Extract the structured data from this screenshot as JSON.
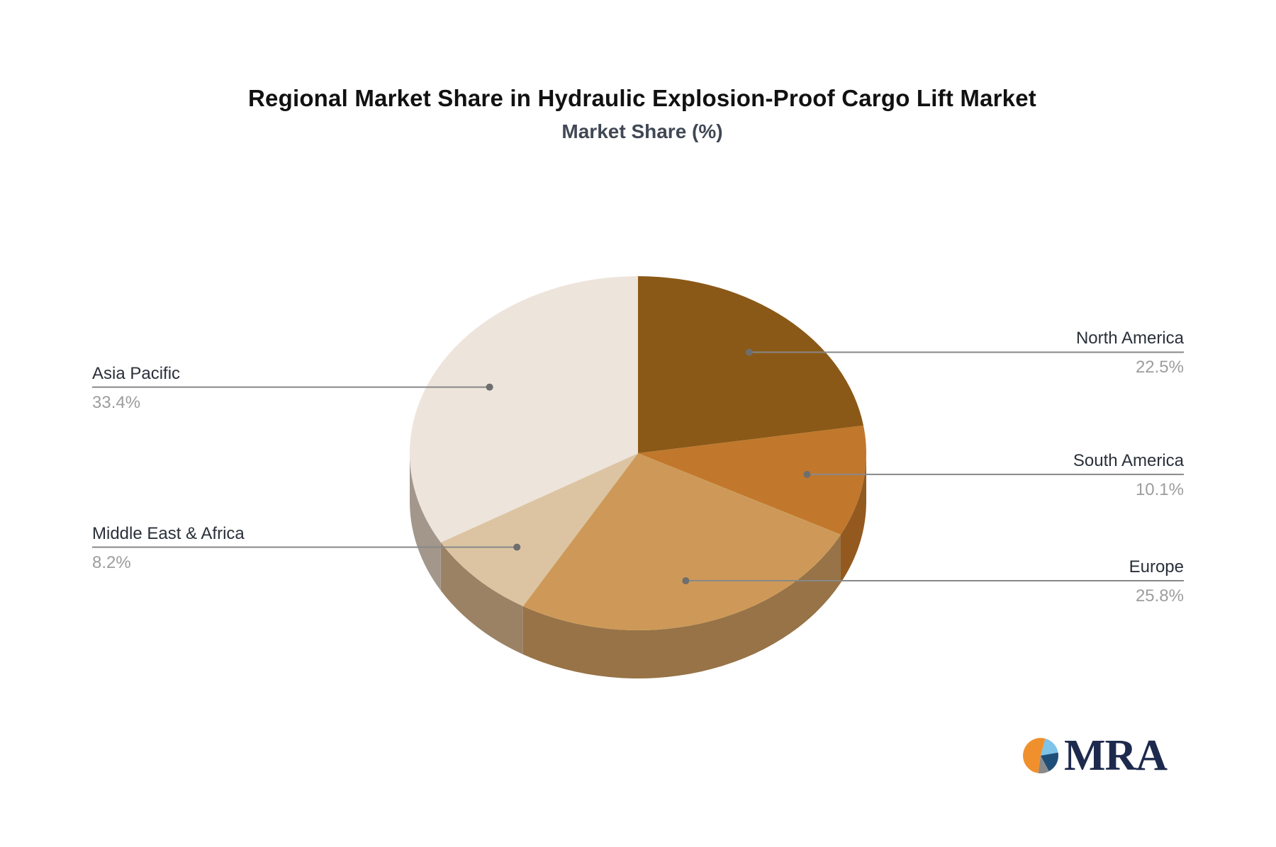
{
  "title": "Regional Market Share in Hydraulic Explosion-Proof Cargo Lift Market",
  "subtitle": "Market Share (%)",
  "chart_data": {
    "type": "pie",
    "style": "3d",
    "title": "Regional Market Share in Hydraulic Explosion-Proof Cargo Lift Market",
    "subtitle": "Market Share (%)",
    "unit": "%",
    "start_angle_deg": 0,
    "direction": "clockwise",
    "legend_position": "callout-lines",
    "series": [
      {
        "name": "North America",
        "value": 22.5,
        "label": "22.5%",
        "color": "#8B5917",
        "side_color": "#6F4612",
        "side": "right"
      },
      {
        "name": "South America",
        "value": 10.1,
        "label": "10.1%",
        "color": "#C1782C",
        "side_color": "#93591F",
        "side": "right"
      },
      {
        "name": "Europe",
        "value": 25.8,
        "label": "25.8%",
        "color": "#CE9958",
        "side_color": "#977347",
        "side": "right"
      },
      {
        "name": "Middle East & Africa",
        "value": 8.2,
        "label": "8.2%",
        "color": "#DCC4A2",
        "side_color": "#9B8265",
        "side": "left"
      },
      {
        "name": "Asia Pacific",
        "value": 33.4,
        "label": "33.4%",
        "color": "#EDE4DB",
        "side_color": "#A3978C",
        "side": "left"
      }
    ],
    "connector_color": "#888888",
    "dot_color": "#6E6E6E",
    "label_name_color": "#2A303A",
    "label_value_color": "#9D9D9D"
  },
  "logo": {
    "text": "MRA",
    "text_color": "#1E2A4D",
    "slice_colors": [
      "#7EC3E8",
      "#1F4E79",
      "#8A8A8A",
      "#F0902D"
    ]
  }
}
